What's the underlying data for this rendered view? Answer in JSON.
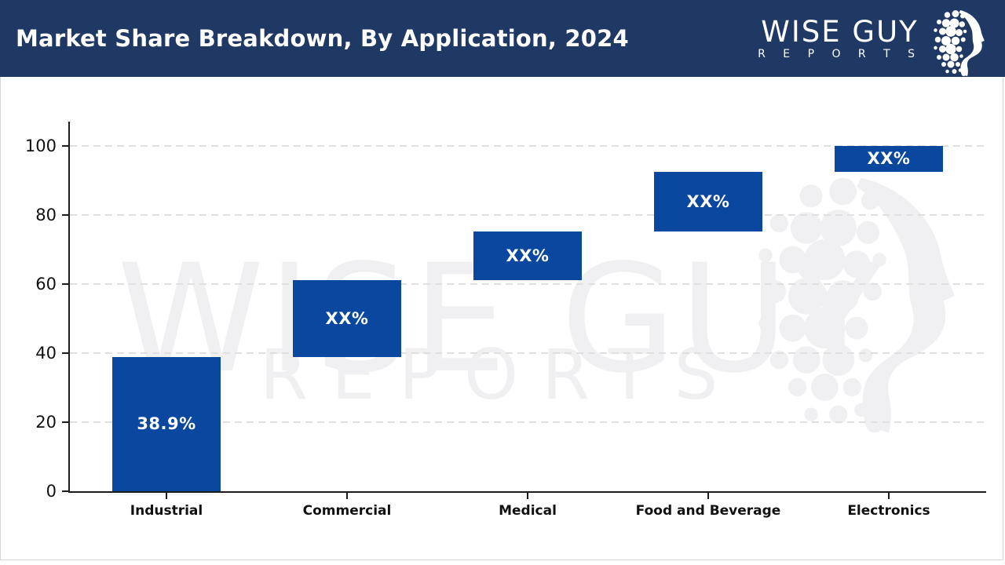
{
  "header": {
    "title": "Market Share Breakdown, By Application, 2024",
    "brand": {
      "line1": "WISE GUY",
      "line2": "R E P O R T S"
    }
  },
  "watermark": {
    "line1": "WISE GUY",
    "line2": "R E P O R T S"
  },
  "chart_data": {
    "type": "bar",
    "subtype": "waterfall-breakdown",
    "title": "Market Share Breakdown, By Application, 2024",
    "categories": [
      "Industrial",
      "Commercial",
      "Medical",
      "Food and Beverage",
      "Electronics"
    ],
    "segments": [
      {
        "category": "Industrial",
        "start": 0,
        "end": 38.9,
        "label": "38.9%"
      },
      {
        "category": "Commercial",
        "start": 38.9,
        "end": 61.0,
        "label": "XX%"
      },
      {
        "category": "Medical",
        "start": 61.0,
        "end": 75.2,
        "label": "XX%"
      },
      {
        "category": "Food and Beverage",
        "start": 75.2,
        "end": 92.5,
        "label": "XX%"
      },
      {
        "category": "Electronics",
        "start": 92.5,
        "end": 100,
        "label": "XX%"
      }
    ],
    "xlabel": "",
    "ylabel": "",
    "y_ticks": [
      0,
      20,
      40,
      60,
      80,
      100
    ],
    "ylim": [
      0,
      107
    ],
    "grid": "horizontal-dashed",
    "legend": "none",
    "bar_color": "#0a479e",
    "bar_label_color": "#ffffff"
  },
  "colors": {
    "header_bg": "#1f3864",
    "bar": "#0a479e",
    "grid": "#e0e0e0",
    "axis": "#1c1c1c",
    "watermark": "#f0f0f2",
    "border": "#d6d6d6"
  }
}
